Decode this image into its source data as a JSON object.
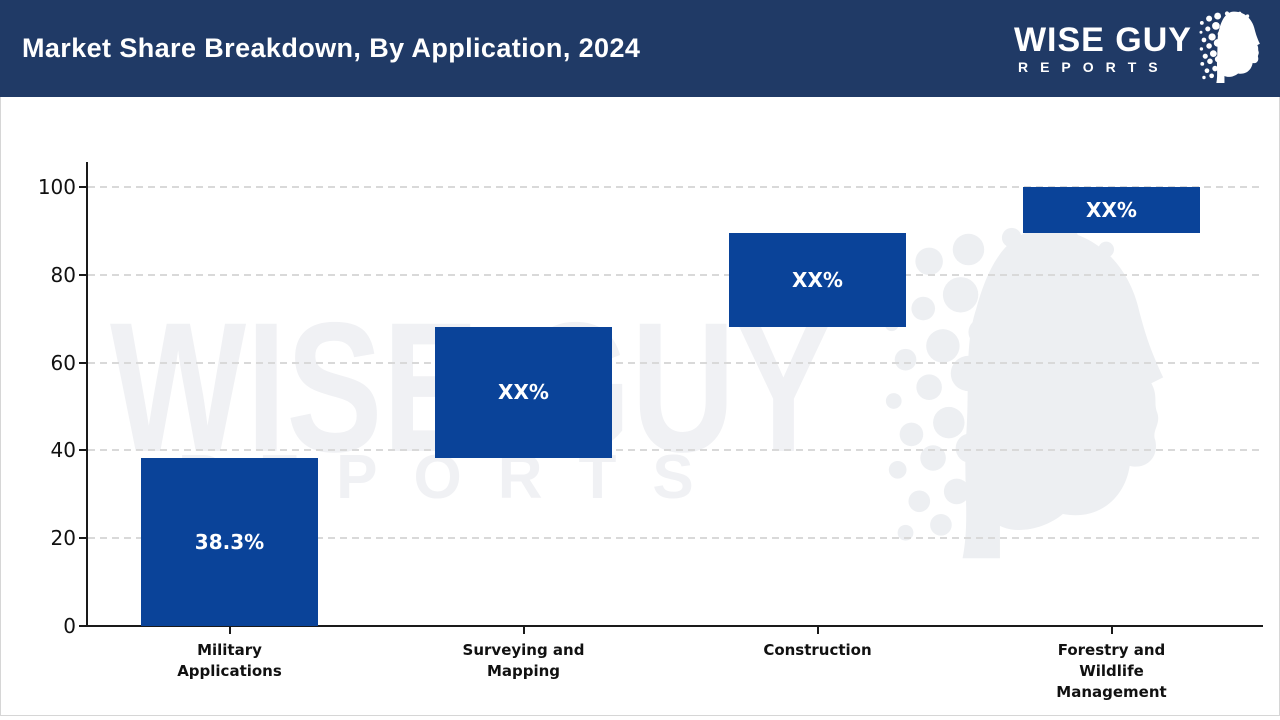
{
  "header": {
    "title": "Market Share Breakdown, By Application, 2024",
    "logo": {
      "wordmark": "WISE GUY",
      "subtext": "REPORTS"
    },
    "colors": {
      "background": "#203a66",
      "text": "#ffffff"
    }
  },
  "watermark": {
    "wordmark": "WISE GUY",
    "subtext": "REPORTS"
  },
  "chart_data": {
    "type": "bar",
    "subtype": "waterfall",
    "title": "Market Share Breakdown, By Application, 2024",
    "categories": [
      "Military\nApplications",
      "Surveying and\nMapping",
      "Construction",
      "Forestry and\nWildlife\nManagement"
    ],
    "bar_labels": [
      "38.3%",
      "XX%",
      "XX%",
      "XX%"
    ],
    "segments": [
      {
        "start": 0,
        "end": 38.3
      },
      {
        "start": 38.3,
        "end": 68.1
      },
      {
        "start": 68.1,
        "end": 89.5
      },
      {
        "start": 89.5,
        "end": 100
      }
    ],
    "values": [
      38.3,
      29.8,
      21.4,
      10.5
    ],
    "ylim": [
      0,
      100
    ],
    "yticks": [
      0,
      20,
      40,
      60,
      80,
      100
    ],
    "xlabel": "",
    "ylabel": "",
    "grid": "horizontal-dashed",
    "legend": "none",
    "bar_color": "#0a4399",
    "bar_label_color": "#ffffff",
    "axis_color": "#1a1a1a",
    "gridline_color": "#d9d9d9"
  }
}
